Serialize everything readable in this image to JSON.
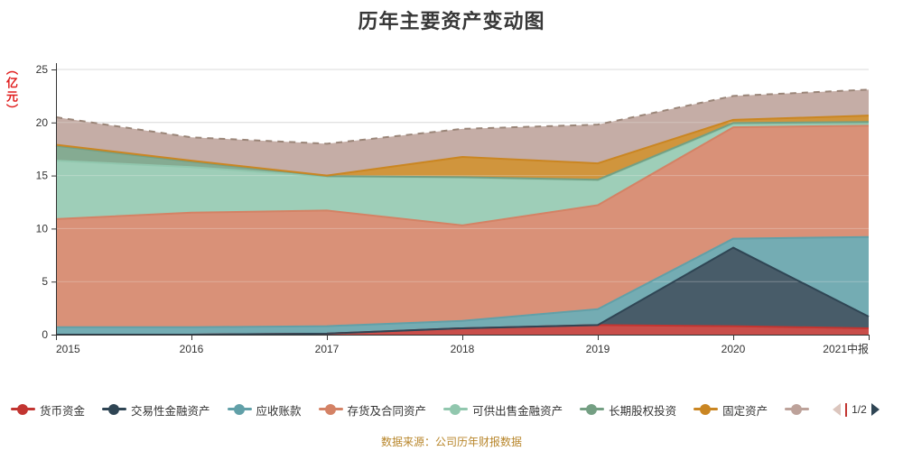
{
  "title": "历年主要资产变动图",
  "footer": {
    "source_note": "数据来源：公司历年财报数据"
  },
  "legend": {
    "items": [
      {
        "label": "货币资金",
        "color": "#c23531"
      },
      {
        "label": "交易性金融资产",
        "color": "#2f4554"
      },
      {
        "label": "应收账款",
        "color": "#61a0a8"
      },
      {
        "label": "存货及合同资产",
        "color": "#d48265"
      },
      {
        "label": "可供出售金融资产",
        "color": "#91c7ae"
      },
      {
        "label": "长期股权投资",
        "color": "#749f83"
      },
      {
        "label": "固定资产",
        "color": "#ca8622"
      },
      {
        "label": "",
        "color": "#bda29a"
      }
    ],
    "pagination": {
      "prev": "◀",
      "page_info": "1/2",
      "next": "▶"
    }
  },
  "chart_data": {
    "type": "area",
    "stacked": true,
    "title": "历年主要资产变动图",
    "xlabel": "",
    "ylabel": "（亿元）",
    "x_categories": [
      "2015",
      "2016",
      "2017",
      "2018",
      "2019",
      "2020",
      "2021中报"
    ],
    "y_axis": {
      "name": "（亿元）",
      "min": 0,
      "max": 25,
      "interval": 5,
      "ticks": [
        0,
        5,
        10,
        15,
        20,
        25
      ]
    },
    "grid": true,
    "legend_position": "bottom",
    "series": [
      {
        "name": "货币资金",
        "color": "#c23531",
        "dashed": false,
        "values": [
          0.0,
          0.0,
          0.1,
          0.6,
          0.9,
          0.8,
          0.6
        ]
      },
      {
        "name": "交易性金融资产",
        "color": "#2f4554",
        "dashed": false,
        "values": [
          0.0,
          0.0,
          0.0,
          0.0,
          0.0,
          7.4,
          1.1
        ]
      },
      {
        "name": "应收账款",
        "color": "#61a0a8",
        "dashed": false,
        "values": [
          0.7,
          0.7,
          0.7,
          0.7,
          1.5,
          0.85,
          7.5
        ]
      },
      {
        "name": "存货及合同资产",
        "color": "#d48265",
        "dashed": false,
        "values": [
          10.2,
          10.8,
          10.9,
          9.0,
          9.8,
          10.5,
          10.5
        ]
      },
      {
        "name": "可供出售金融资产",
        "color": "#91c7ae",
        "dashed": false,
        "values": [
          5.5,
          4.3,
          3.2,
          4.5,
          2.35,
          0.3,
          0.2
        ]
      },
      {
        "name": "长期股权投资",
        "color": "#749f83",
        "dashed": false,
        "values": [
          1.4,
          0.5,
          0.05,
          0.05,
          0.05,
          0.1,
          0.15
        ]
      },
      {
        "name": "固定资产",
        "color": "#ca8622",
        "dashed": false,
        "values": [
          0.1,
          0.1,
          0.05,
          1.9,
          1.55,
          0.3,
          0.6
        ]
      },
      {
        "name": "",
        "color": "#bda29a",
        "dashed": true,
        "values": [
          2.6,
          2.2,
          3.0,
          2.65,
          3.65,
          2.25,
          2.45
        ]
      }
    ],
    "totals": [
      20.5,
      18.6,
      18.0,
      19.4,
      19.8,
      22.5,
      23.1
    ]
  },
  "style_colors": {
    "axis_line": "#333333",
    "grid_line": "#cccccc",
    "tick_label": "#333333",
    "title_text": "#383838",
    "y_name_red": "#e01f1f",
    "source_gold": "#b8862b",
    "pager_next": "#2f4554",
    "pager_prev_inactive": "#dcc6be"
  }
}
